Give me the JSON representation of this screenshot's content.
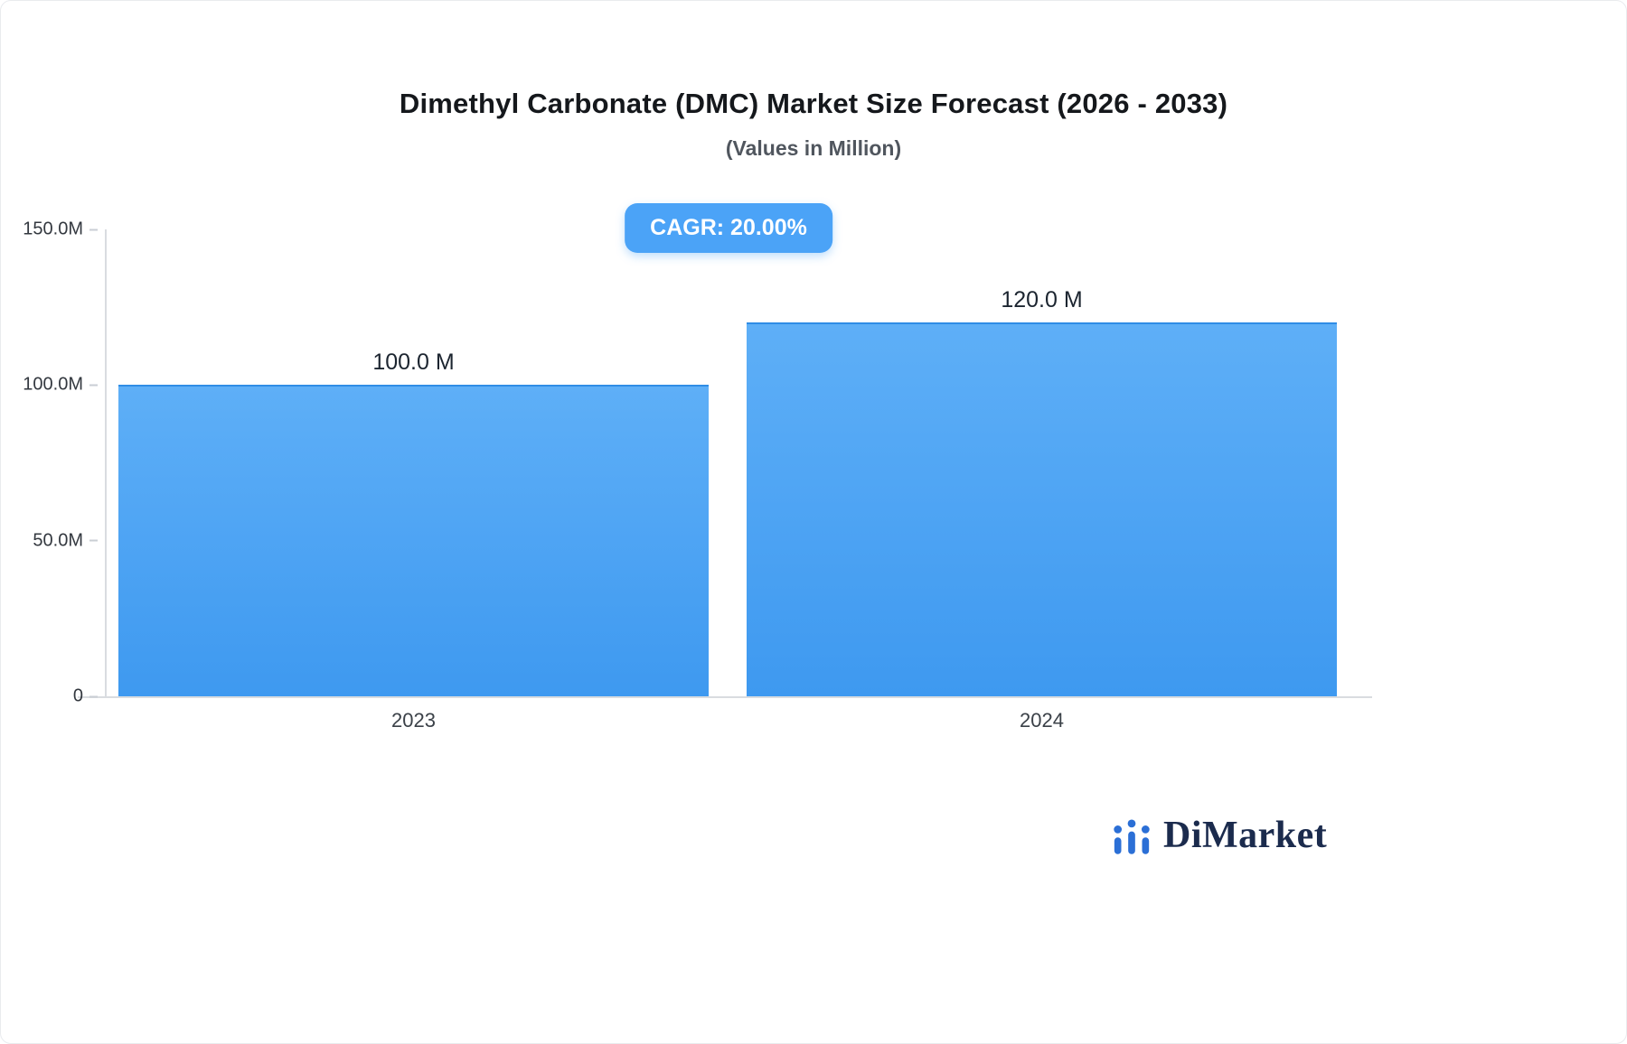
{
  "badge": {
    "label": "CAGR: 20.00%",
    "color": "#4BA3F7"
  },
  "footer": {
    "brand": "DiMarket",
    "logo_icon": "bar-chart-dots-icon",
    "brand_color": "#1B2B4D",
    "icon_color": "#2B6FD6"
  },
  "chart_data": {
    "type": "bar",
    "title": "Dimethyl Carbonate (DMC) Market Size Forecast (2026 - 2033)",
    "subtitle": "(Values in Million)",
    "categories": [
      "2023",
      "2024"
    ],
    "values": [
      100.0,
      120.0
    ],
    "value_labels": [
      "100.0 M",
      "120.0 M"
    ],
    "unit": "Million",
    "ylim": [
      0,
      150
    ],
    "yticks": [
      {
        "value": 150,
        "label": "150.0M"
      },
      {
        "value": 100,
        "label": "100.0M"
      },
      {
        "value": 50,
        "label": "50.0M"
      },
      {
        "value": 0,
        "label": "0"
      }
    ],
    "bar_color_top": "#5EAFF7",
    "bar_color_bottom": "#3E99F0",
    "bar_border_color": "#2F8DE6",
    "legend": false,
    "grid": false
  }
}
